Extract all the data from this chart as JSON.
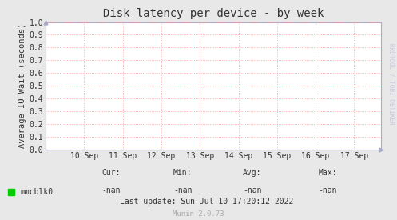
{
  "title": "Disk latency per device - by week",
  "ylabel": "Average IO Wait (seconds)",
  "background_color": "#e8e8e8",
  "plot_bg_color": "#ffffff",
  "grid_color": "#ff9999",
  "axis_color": "#aaaacc",
  "x_tick_labels": [
    "10 Sep",
    "11 Sep",
    "12 Sep",
    "13 Sep",
    "14 Sep",
    "15 Sep",
    "16 Sep",
    "17 Sep"
  ],
  "x_tick_positions": [
    1,
    2,
    3,
    4,
    5,
    6,
    7,
    8
  ],
  "x_min": 0.0,
  "x_max": 8.7,
  "y_min": 0.0,
  "y_max": 1.0,
  "y_ticks": [
    0.0,
    0.1,
    0.2,
    0.3,
    0.4,
    0.5,
    0.6,
    0.7,
    0.8,
    0.9,
    1.0
  ],
  "legend_label": "mmcblk0",
  "legend_color": "#00cc00",
  "last_update": "Last update: Sun Jul 10 17:20:12 2022",
  "munin_label": "Munin 2.0.73",
  "rrdtool_label": "RRDTOOL / TOBI OETIKER",
  "title_fontsize": 10,
  "axis_label_fontsize": 7.5,
  "tick_fontsize": 7,
  "footer_fontsize": 7,
  "watermark_fontsize": 5.5,
  "text_color": "#333333",
  "watermark_color": "#c8c8dc"
}
